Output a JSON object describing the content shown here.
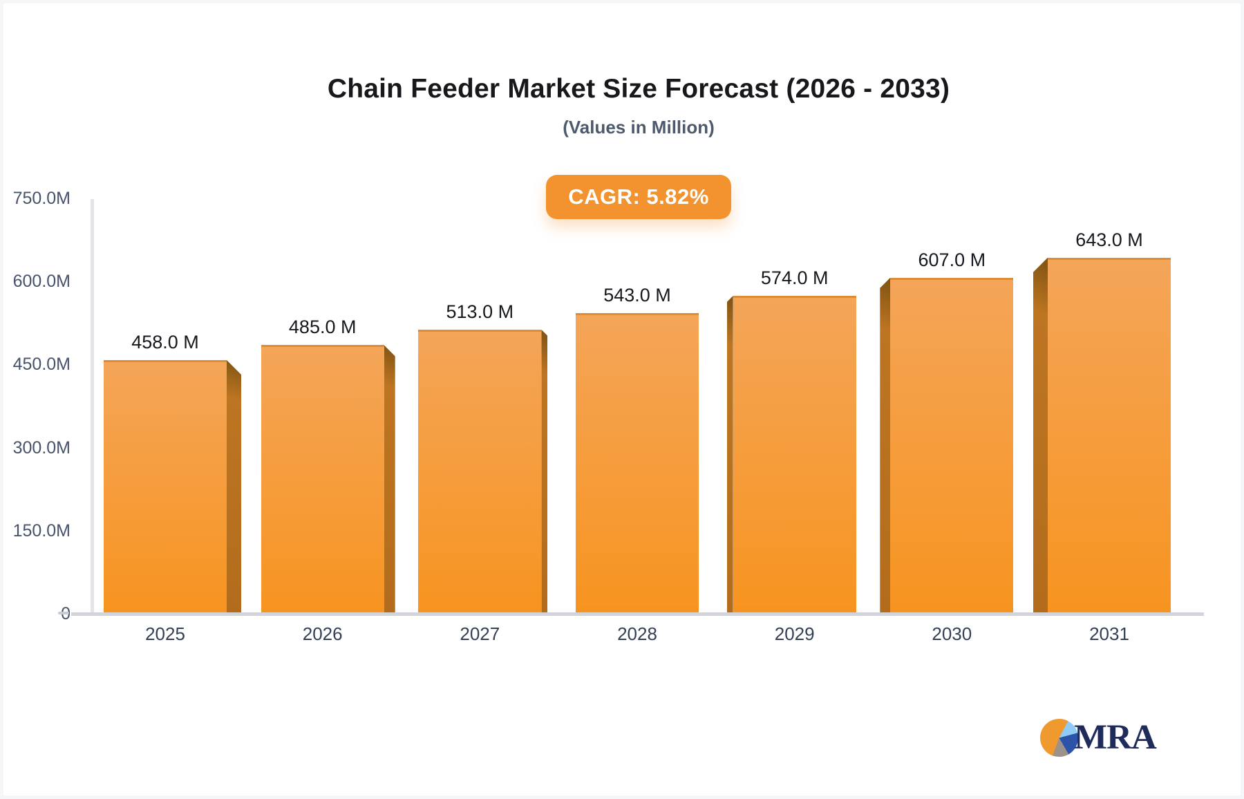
{
  "header": {
    "title": "Chain Feeder Market Size Forecast (2026 - 2033)",
    "subtitle": "(Values in Million)"
  },
  "badge": {
    "label": "CAGR: 5.82%",
    "bg": "#F2932F",
    "text_color": "#FFFFFF"
  },
  "chart_data": {
    "type": "bar",
    "title": "Chain Feeder Market Size Forecast (2026 - 2033)",
    "subtitle": "(Values in Million)",
    "xlabel": "",
    "ylabel": "",
    "unit": "Million",
    "categories": [
      "2025",
      "2026",
      "2027",
      "2028",
      "2029",
      "2030",
      "2031"
    ],
    "values": [
      458,
      485,
      513,
      543,
      574,
      607,
      643
    ],
    "value_labels": [
      "458.0 M",
      "485.0 M",
      "513.0 M",
      "543.0 M",
      "574.0 M",
      "607.0 M",
      "643.0 M"
    ],
    "y_axis": {
      "ticks": [
        "750.0M",
        "600.0M",
        "450.0M",
        "300.0M",
        "150.0M",
        "0"
      ],
      "tick_values": [
        750,
        600,
        450,
        300,
        150,
        0
      ],
      "range": [
        0,
        750
      ]
    },
    "grid": false,
    "legend": "none",
    "colors": {
      "bar_face_top": "#F4A558",
      "bar_face_bottom": "#F79420",
      "bar_top_edge": "#DE8C36",
      "bar_side_dark": "#7D5212",
      "bar_side_mid": "#BD7522",
      "bar_side_low": "#B26C1B",
      "axis_line": "#E2E4E9",
      "baseline": "#D2D4D9",
      "zero_tick": "#C9CBD1",
      "tick_text": "#46536A",
      "value_label_text": "#15181D",
      "category_text": "#333F55"
    }
  },
  "logo": {
    "text": "MRA",
    "pie_colors": {
      "orange": "#F0992F",
      "light_blue": "#8FCBF4",
      "navy": "#2B53A8",
      "gray": "#9C918B"
    },
    "text_color": "#1F2B5B"
  }
}
